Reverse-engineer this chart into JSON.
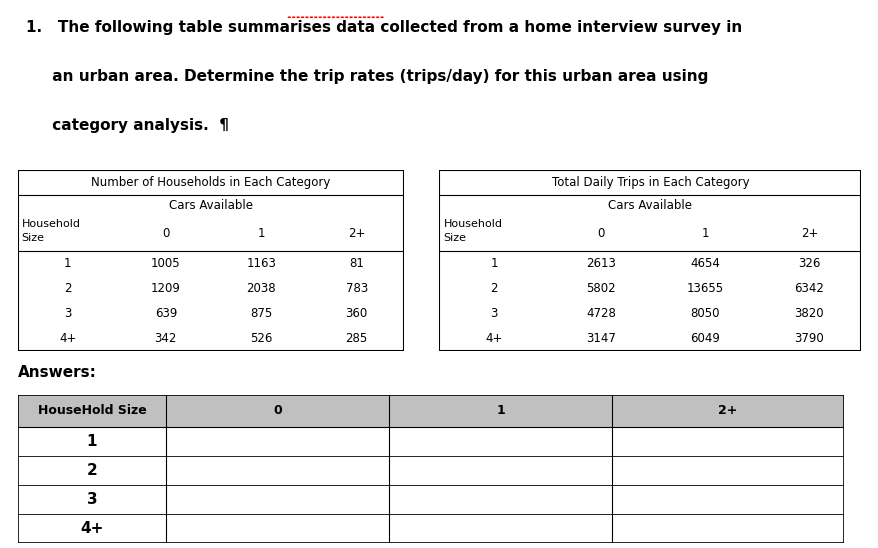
{
  "question_bg_color": "#FDEBD0",
  "table1_title": "Number of Households in Each Category",
  "table1_subtitle": "Cars Available",
  "table2_title": "Total Daily Trips in Each Category",
  "table2_subtitle": "Cars Available",
  "col_headers": [
    "0",
    "1",
    "2+"
  ],
  "row_labels": [
    "1",
    "2",
    "3",
    "4+"
  ],
  "table1_data": [
    [
      1005,
      1163,
      81
    ],
    [
      1209,
      2038,
      783
    ],
    [
      639,
      875,
      360
    ],
    [
      342,
      526,
      285
    ]
  ],
  "table2_data": [
    [
      2613,
      4654,
      326
    ],
    [
      5802,
      13655,
      6342
    ],
    [
      4728,
      8050,
      3820
    ],
    [
      3147,
      6049,
      3790
    ]
  ],
  "answers_label": "Answers:",
  "answers_header": [
    "HouseHold Size",
    "0",
    "1",
    "2+"
  ],
  "answers_rows": [
    "1",
    "2",
    "3",
    "4+"
  ],
  "header_bg_color": "#C0C0C0",
  "question_lines": [
    "1.   The following table summarises data collected from a home interview survey in",
    "     an urban area. Determine the trip rates (trips/day) for this urban area using",
    "     category analysis.  ¶"
  ]
}
